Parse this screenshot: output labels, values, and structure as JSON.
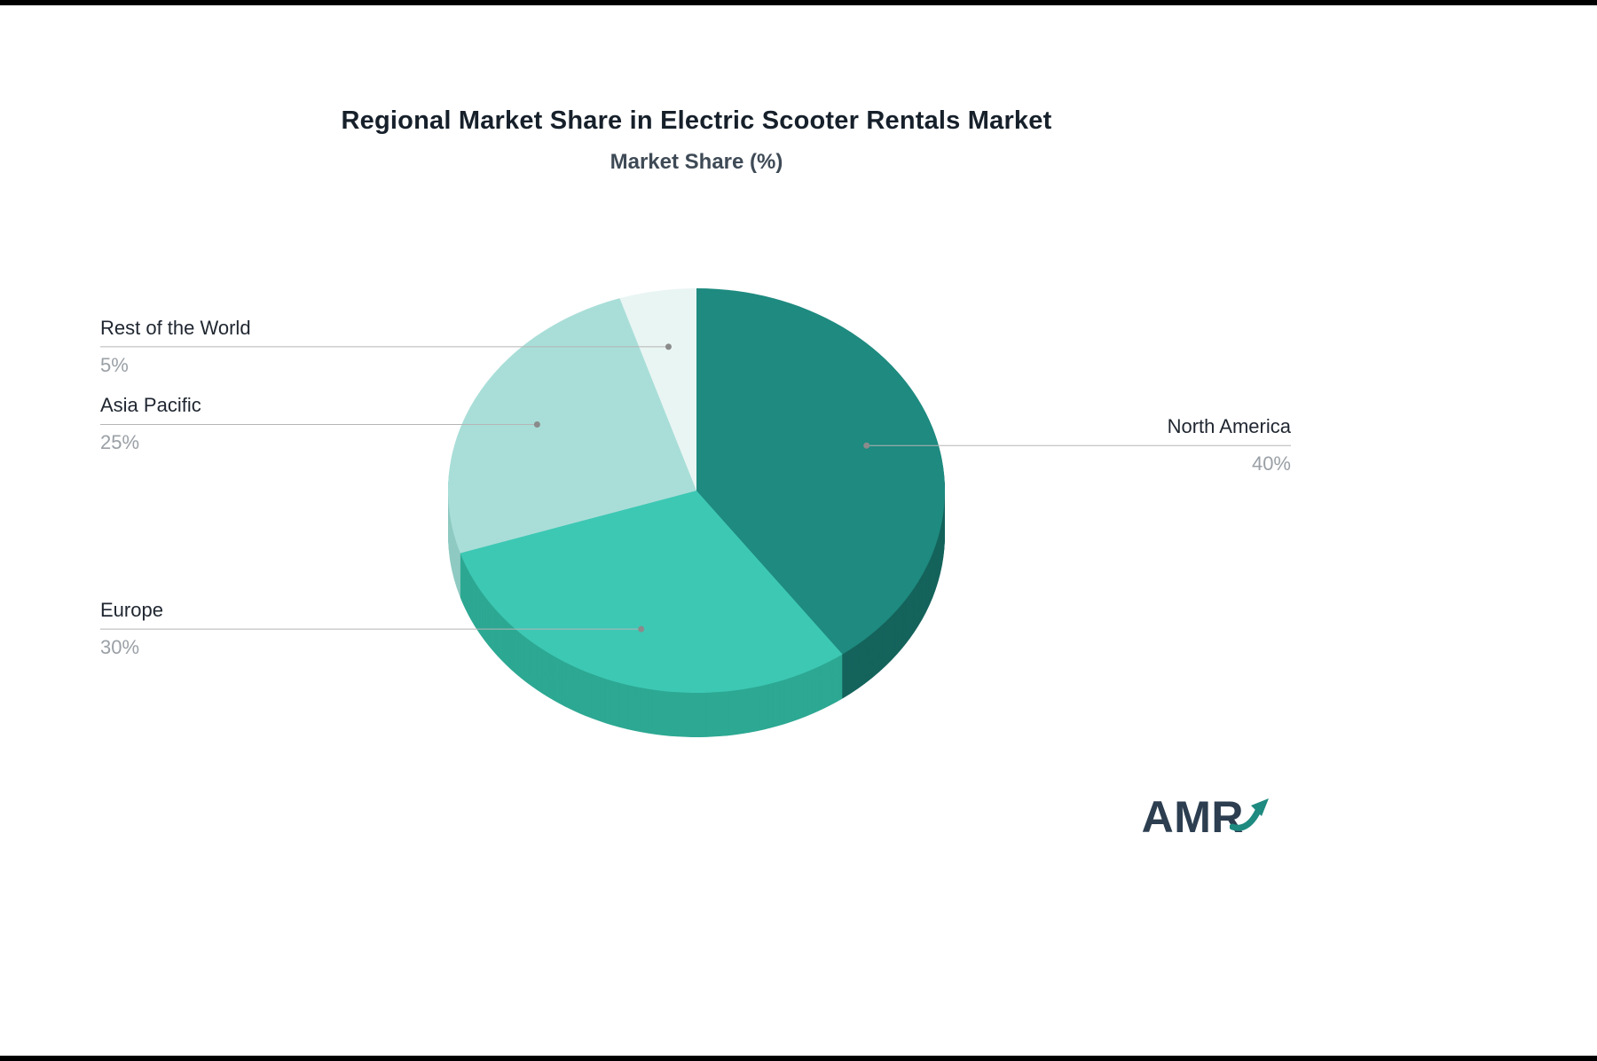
{
  "chart_data": {
    "type": "pie",
    "style": "3d",
    "title": "Regional Market Share in Electric Scooter Rentals Market",
    "subtitle": "Market Share (%)",
    "unit": "%",
    "categories": [
      "North America",
      "Europe",
      "Asia Pacific",
      "Rest of the World"
    ],
    "values": [
      40,
      30,
      25,
      5
    ],
    "slice_colors": [
      "#1e8a80",
      "#3dc8b4",
      "#a9ded8",
      "#e9f5f3"
    ],
    "slice_depth_colors": [
      "#15645c",
      "#2da violet",
      "#8fcac2",
      "#cfe9e5"
    ],
    "start_angle_deg": 0,
    "direction": "clockwise",
    "legend_position": "none",
    "labels_shown": true,
    "label_style": {
      "name_color": "#1f2630",
      "value_color": "#9aa0a6",
      "line_color": "#b5b5b5",
      "dot_color": "#8b8b8b"
    }
  },
  "logo": {
    "text": "AMR",
    "arrow_icon": "trend-up-arrow",
    "text_color": "#2c3e50",
    "arrow_color": "#1e8a80"
  }
}
